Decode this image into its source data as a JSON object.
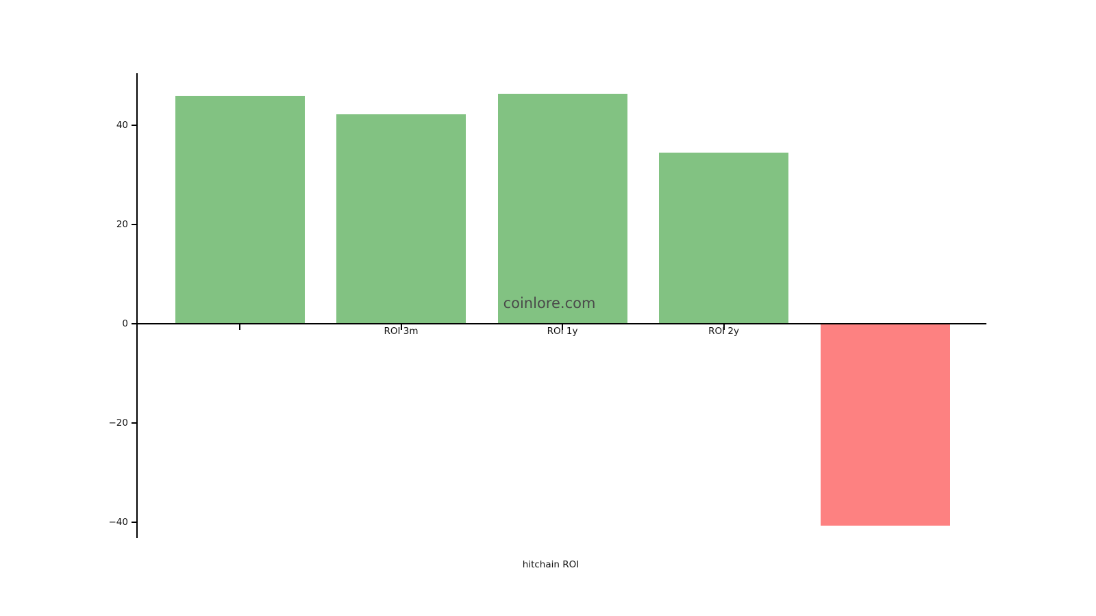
{
  "chart_data": {
    "type": "bar",
    "title": "",
    "xlabel": "hitchain ROI",
    "ylabel": "",
    "categories": [
      "",
      "ROI 3m",
      "ROI 1y",
      "ROI 2y",
      ""
    ],
    "values": [
      46,
      42.2,
      46.3,
      34.5,
      -40.7
    ],
    "positive_color": "#82c282",
    "negative_color": "#fd8181",
    "axis_color": "#000000",
    "text_color": "#111111",
    "ytick_values": [
      40,
      20,
      0,
      -20,
      -40
    ],
    "ytick_labels": [
      "40",
      "20",
      "0",
      "−20",
      "−40"
    ],
    "ylim": [
      -43,
      50.8
    ],
    "grid": false,
    "legend": null,
    "watermark": "coinlore.com",
    "watermark_color": "#4a4a4a",
    "notes": "first and last x ticks have no visible label; last tick hidden behind negative bar"
  }
}
